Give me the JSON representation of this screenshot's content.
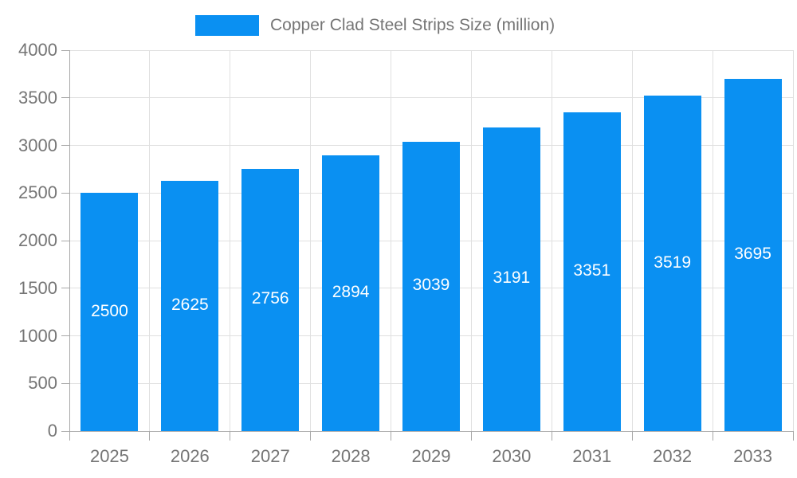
{
  "legend": {
    "label": "Copper Clad Steel Strips Size (million)"
  },
  "chart_data": {
    "type": "bar",
    "title": "Copper Clad Steel Strips Size (million)",
    "series_name": "Copper Clad Steel Strips Size (million)",
    "categories": [
      "2025",
      "2026",
      "2027",
      "2028",
      "2029",
      "2030",
      "2031",
      "2032",
      "2033"
    ],
    "values": [
      2500,
      2625,
      2756,
      2894,
      3039,
      3191,
      3351,
      3519,
      3695
    ],
    "xlabel": "",
    "ylabel": "",
    "ylim": [
      0,
      4000
    ],
    "ytick_step": 500,
    "yticks": [
      0,
      500,
      1000,
      1500,
      2000,
      2500,
      3000,
      3500,
      4000
    ],
    "grid": true,
    "legend_position": "top",
    "value_labels": "inside-middle",
    "colors": {
      "bar": "#0a90f2",
      "value_label": "#ffffff",
      "axis_label": "#757575",
      "grid_line": "#e0e0e0",
      "axis_line": "#a8a8a8",
      "background": "#ffffff"
    }
  }
}
